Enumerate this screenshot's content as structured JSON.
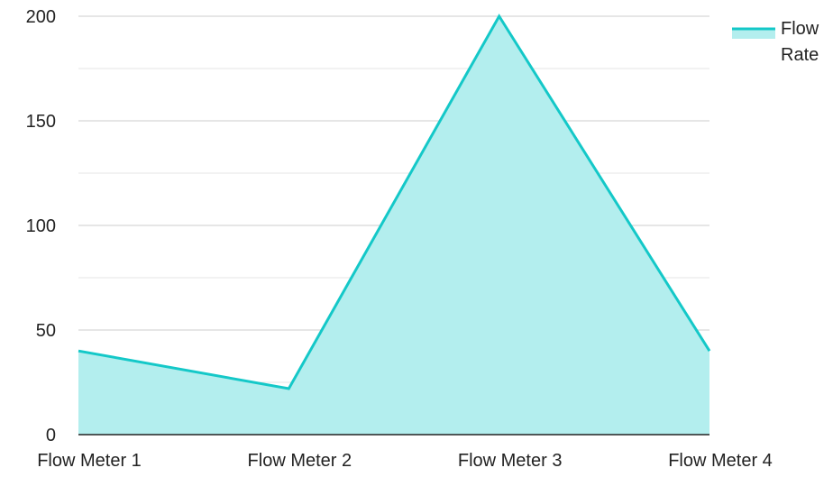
{
  "chart_data": {
    "type": "area",
    "categories": [
      "Flow Meter 1",
      "Flow Meter 2",
      "Flow Meter 3",
      "Flow Meter 4"
    ],
    "series": [
      {
        "name": "Flow Rate",
        "legend_lines": [
          "Flow",
          "Rate"
        ],
        "values": [
          40,
          22,
          200,
          40
        ],
        "line_color": "#14c8c8",
        "fill_color": "#b3eeee"
      }
    ],
    "ylim": [
      0,
      200
    ],
    "yticks": [
      0,
      50,
      100,
      150,
      200
    ],
    "grid": true,
    "legend_position": "top-right",
    "title": "",
    "xlabel": "",
    "ylabel": ""
  },
  "colors": {
    "gridline": "#cccccc",
    "minor_gridline": "#e6e6e6",
    "axis": "#222222",
    "text": "#222222"
  }
}
